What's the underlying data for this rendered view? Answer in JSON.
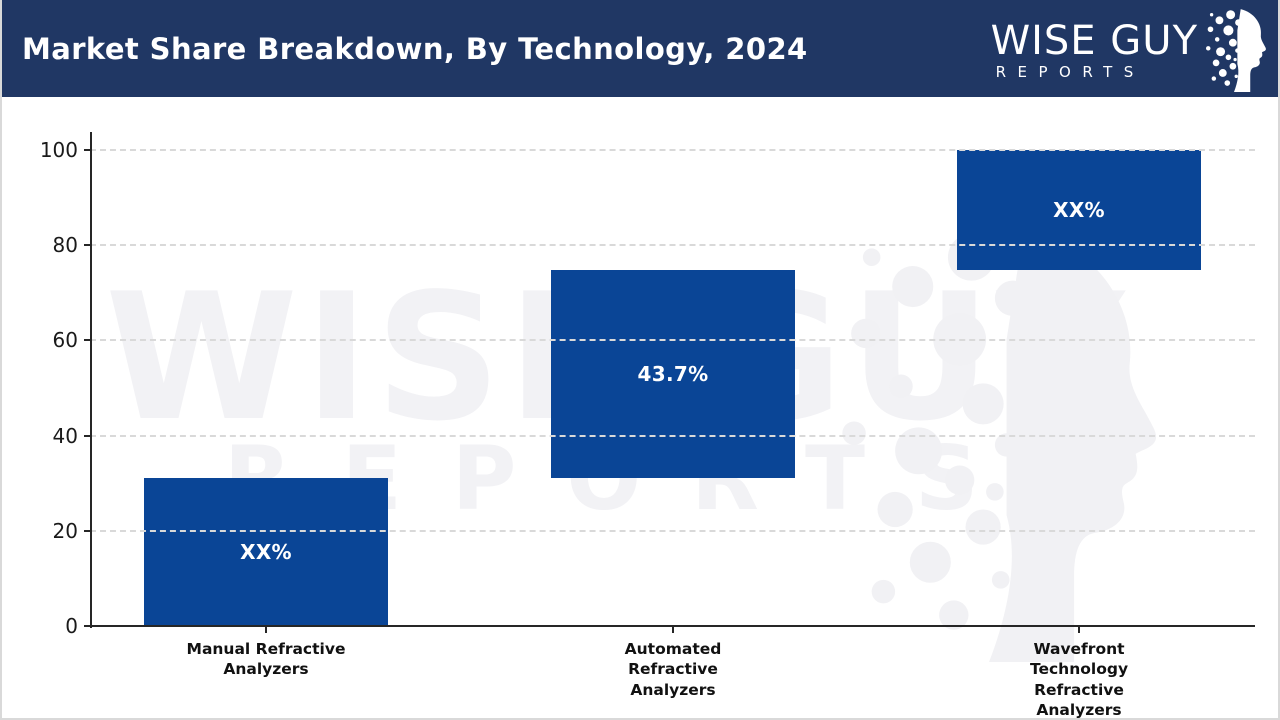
{
  "header": {
    "title": "Market Share Breakdown, By Technology, 2024",
    "logo": {
      "name": "WISE GUY",
      "sub": "REPORTS"
    }
  },
  "watermark": {
    "name": "WISE GUY",
    "sub": "REPORTS"
  },
  "colors": {
    "header_bg": "#203764",
    "bar_blue": "#0a4596",
    "gridline": "#d9d9d9",
    "axis": "#262626",
    "watermark": "#f2f2f5"
  },
  "chart_data": {
    "type": "bar",
    "variant": "waterfall",
    "title": "Market Share Breakdown, By Technology, 2024",
    "categories": [
      "Manual Refractive\nAnalyzers",
      "Automated\nRefractive\nAnalyzers",
      "Wavefront\nTechnology\nRefractive\nAnalyzers"
    ],
    "series": [
      {
        "category": "Manual Refractive Analyzers",
        "label": "XX%",
        "start": 0,
        "end": 31.1
      },
      {
        "category": "Automated Refractive Analyzers",
        "label": "43.7%",
        "start": 31.1,
        "end": 74.8
      },
      {
        "category": "Wavefront Technology Refractive Analyzers",
        "label": "XX%",
        "start": 74.8,
        "end": 100
      }
    ],
    "xlabel": "",
    "ylabel": "",
    "ylim": [
      0,
      100
    ],
    "yticks": [
      0,
      20,
      40,
      60,
      80,
      100
    ],
    "legend": false,
    "grid": "horizontal-dashed"
  }
}
